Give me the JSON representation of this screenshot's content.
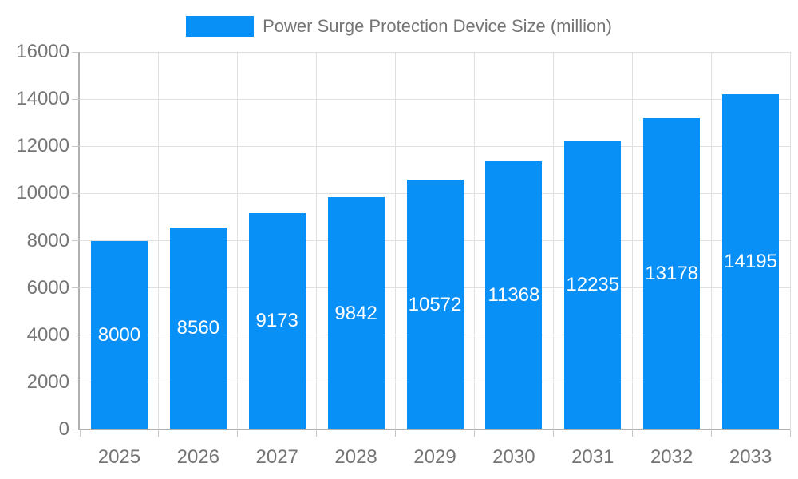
{
  "chart_data": {
    "type": "bar",
    "title": "Power Surge Protection Device Size (million)",
    "categories": [
      "2025",
      "2026",
      "2027",
      "2028",
      "2029",
      "2030",
      "2031",
      "2032",
      "2033"
    ],
    "values": [
      8000,
      8560,
      9173,
      9842,
      10572,
      11368,
      12235,
      13178,
      14195
    ],
    "xlabel": "",
    "ylabel": "",
    "ylim": [
      0,
      16000
    ],
    "ytick_step": 2000,
    "ytick_labels": [
      "0",
      "2000",
      "4000",
      "6000",
      "8000",
      "10000",
      "12000",
      "14000",
      "16000"
    ],
    "grid": true,
    "legend_position": "top-center",
    "value_label_position": "inside-middle",
    "colors": {
      "bar": "#0990F7",
      "axis_label_text": "#757575",
      "legend_text": "#757575",
      "value_text": "#ffffff",
      "gridline": "#e0e0e0",
      "axis_line": "#b0b0b0",
      "tick_line": "#c6c6c6",
      "background": "#ffffff"
    }
  }
}
